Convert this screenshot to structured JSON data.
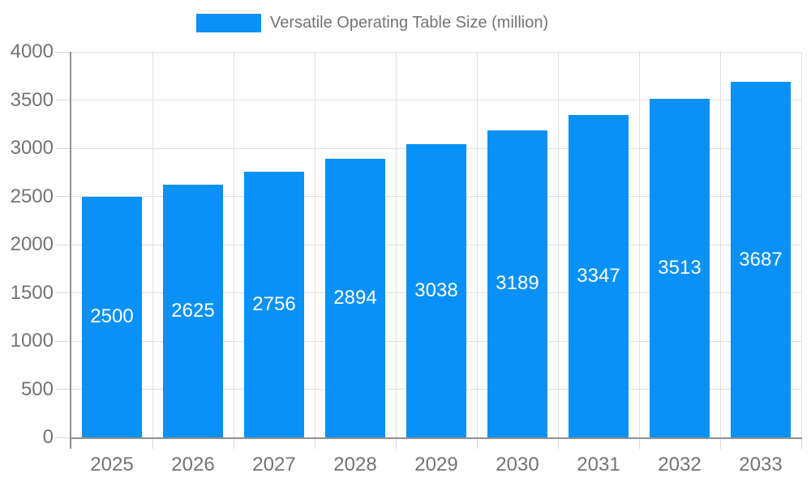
{
  "chart_data": {
    "type": "bar",
    "title": "",
    "xlabel": "",
    "ylabel": "",
    "categories": [
      "2025",
      "2026",
      "2027",
      "2028",
      "2029",
      "2030",
      "2031",
      "2032",
      "2033"
    ],
    "series": [
      {
        "name": "Versatile Operating Table Size (million)",
        "values": [
          2500,
          2625,
          2756,
          2894,
          3038,
          3189,
          3347,
          3513,
          3687
        ]
      }
    ],
    "ylim": [
      0,
      4000
    ],
    "yticks": [
      0,
      500,
      1000,
      1500,
      2000,
      2500,
      3000,
      3500,
      4000
    ],
    "grid": true,
    "legend_position": "top",
    "value_labels": "inside-center"
  },
  "colors": {
    "bar": "#0891F8",
    "bar_label": "#FFFFFF",
    "axis_text": "#737373",
    "legend_text": "#737373",
    "gridline": "#E0E0E0",
    "tick": "#D6D6D6",
    "axis_line": "#8F8F8F",
    "background": "#FFFFFF"
  }
}
